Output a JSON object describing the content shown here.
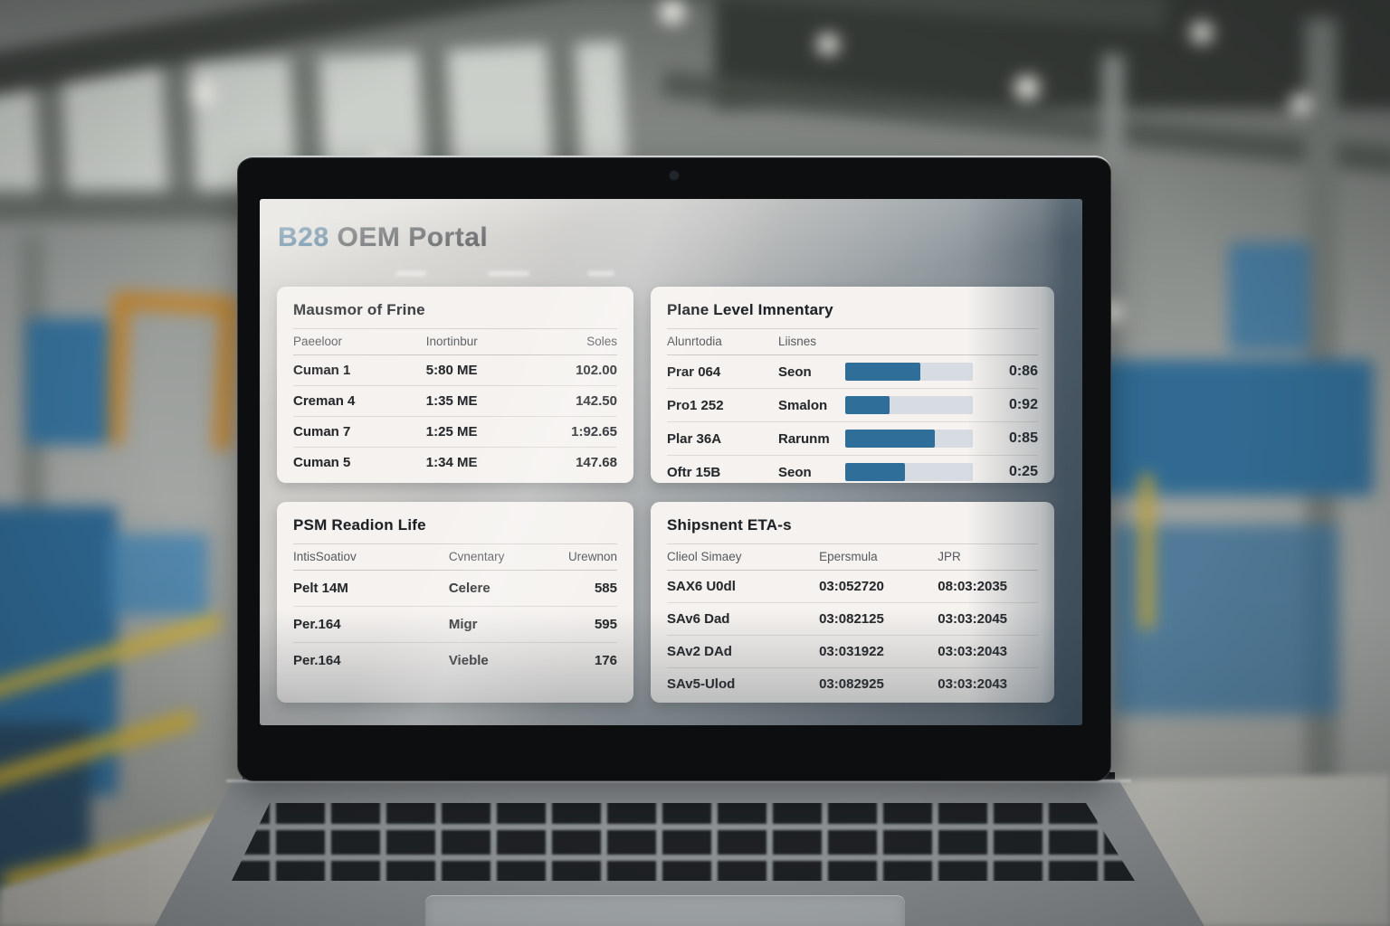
{
  "app": {
    "title_accent": "B28",
    "title_rest": "OEM Portal"
  },
  "colors": {
    "accent": "#2d6389",
    "bar": "#2f6e99",
    "track": "#d7dce3",
    "panel": "#f5f2ef"
  },
  "panels": {
    "orders": {
      "title": "Mausmor of Frine",
      "columns": [
        "Paeeloor",
        "Inortinbur",
        "Soles"
      ],
      "rows": [
        {
          "c1": "Cuman 1",
          "c2": "5:80 ME",
          "c3": "102.00"
        },
        {
          "c1": "Creman 4",
          "c2": "1:35 ME",
          "c3": "142.50"
        },
        {
          "c1": "Cuman 7",
          "c2": "1:25 ME",
          "c3": "1:92.65"
        },
        {
          "c1": "Cuman 5",
          "c2": "1:34 ME",
          "c3": "147.68"
        }
      ]
    },
    "inventory": {
      "title": "Plane Level Imnentary",
      "columns": [
        "Alunrtodia",
        "Liisnes"
      ],
      "rows": [
        {
          "part": "Prar 064",
          "status": "Seon",
          "pct": 59,
          "value": "0:86"
        },
        {
          "part": "Pro1 252",
          "status": "Smalon",
          "pct": 35,
          "value": "0:92"
        },
        {
          "part": "Plar 36A",
          "status": "Rarunm",
          "pct": 70,
          "value": "0:85"
        },
        {
          "part": "Oftr 15B",
          "status": "Seon",
          "pct": 47,
          "value": "0:25"
        }
      ]
    },
    "production": {
      "title": "PSM Readion Life",
      "columns": [
        "IntisSoatiov",
        "Cvnentary",
        "Urewnon"
      ],
      "rows": [
        {
          "c1": "Pelt 14M",
          "c2": "Celere",
          "c3": "585"
        },
        {
          "c1": "Per.164",
          "c2": "Migr",
          "c3": "595"
        },
        {
          "c1": "Per.164",
          "c2": "Vieble",
          "c3": "176"
        }
      ]
    },
    "shipments": {
      "title": "Shipsnent ETA-s",
      "columns": [
        "Clieol Simaey",
        "Epersmula",
        "JPR"
      ],
      "rows": [
        {
          "c1": "SAX6 U0dl",
          "c2": "03:052720",
          "c3": "08:03:2035"
        },
        {
          "c1": "SAv6 Dad",
          "c2": "03:082125",
          "c3": "03:03:2045"
        },
        {
          "c1": "SAv2 DAd",
          "c2": "03:031922",
          "c3": "03:03:2043"
        },
        {
          "c1": "SAv5-Ulod",
          "c2": "03:082925",
          "c3": "03:03:2043"
        }
      ]
    }
  }
}
